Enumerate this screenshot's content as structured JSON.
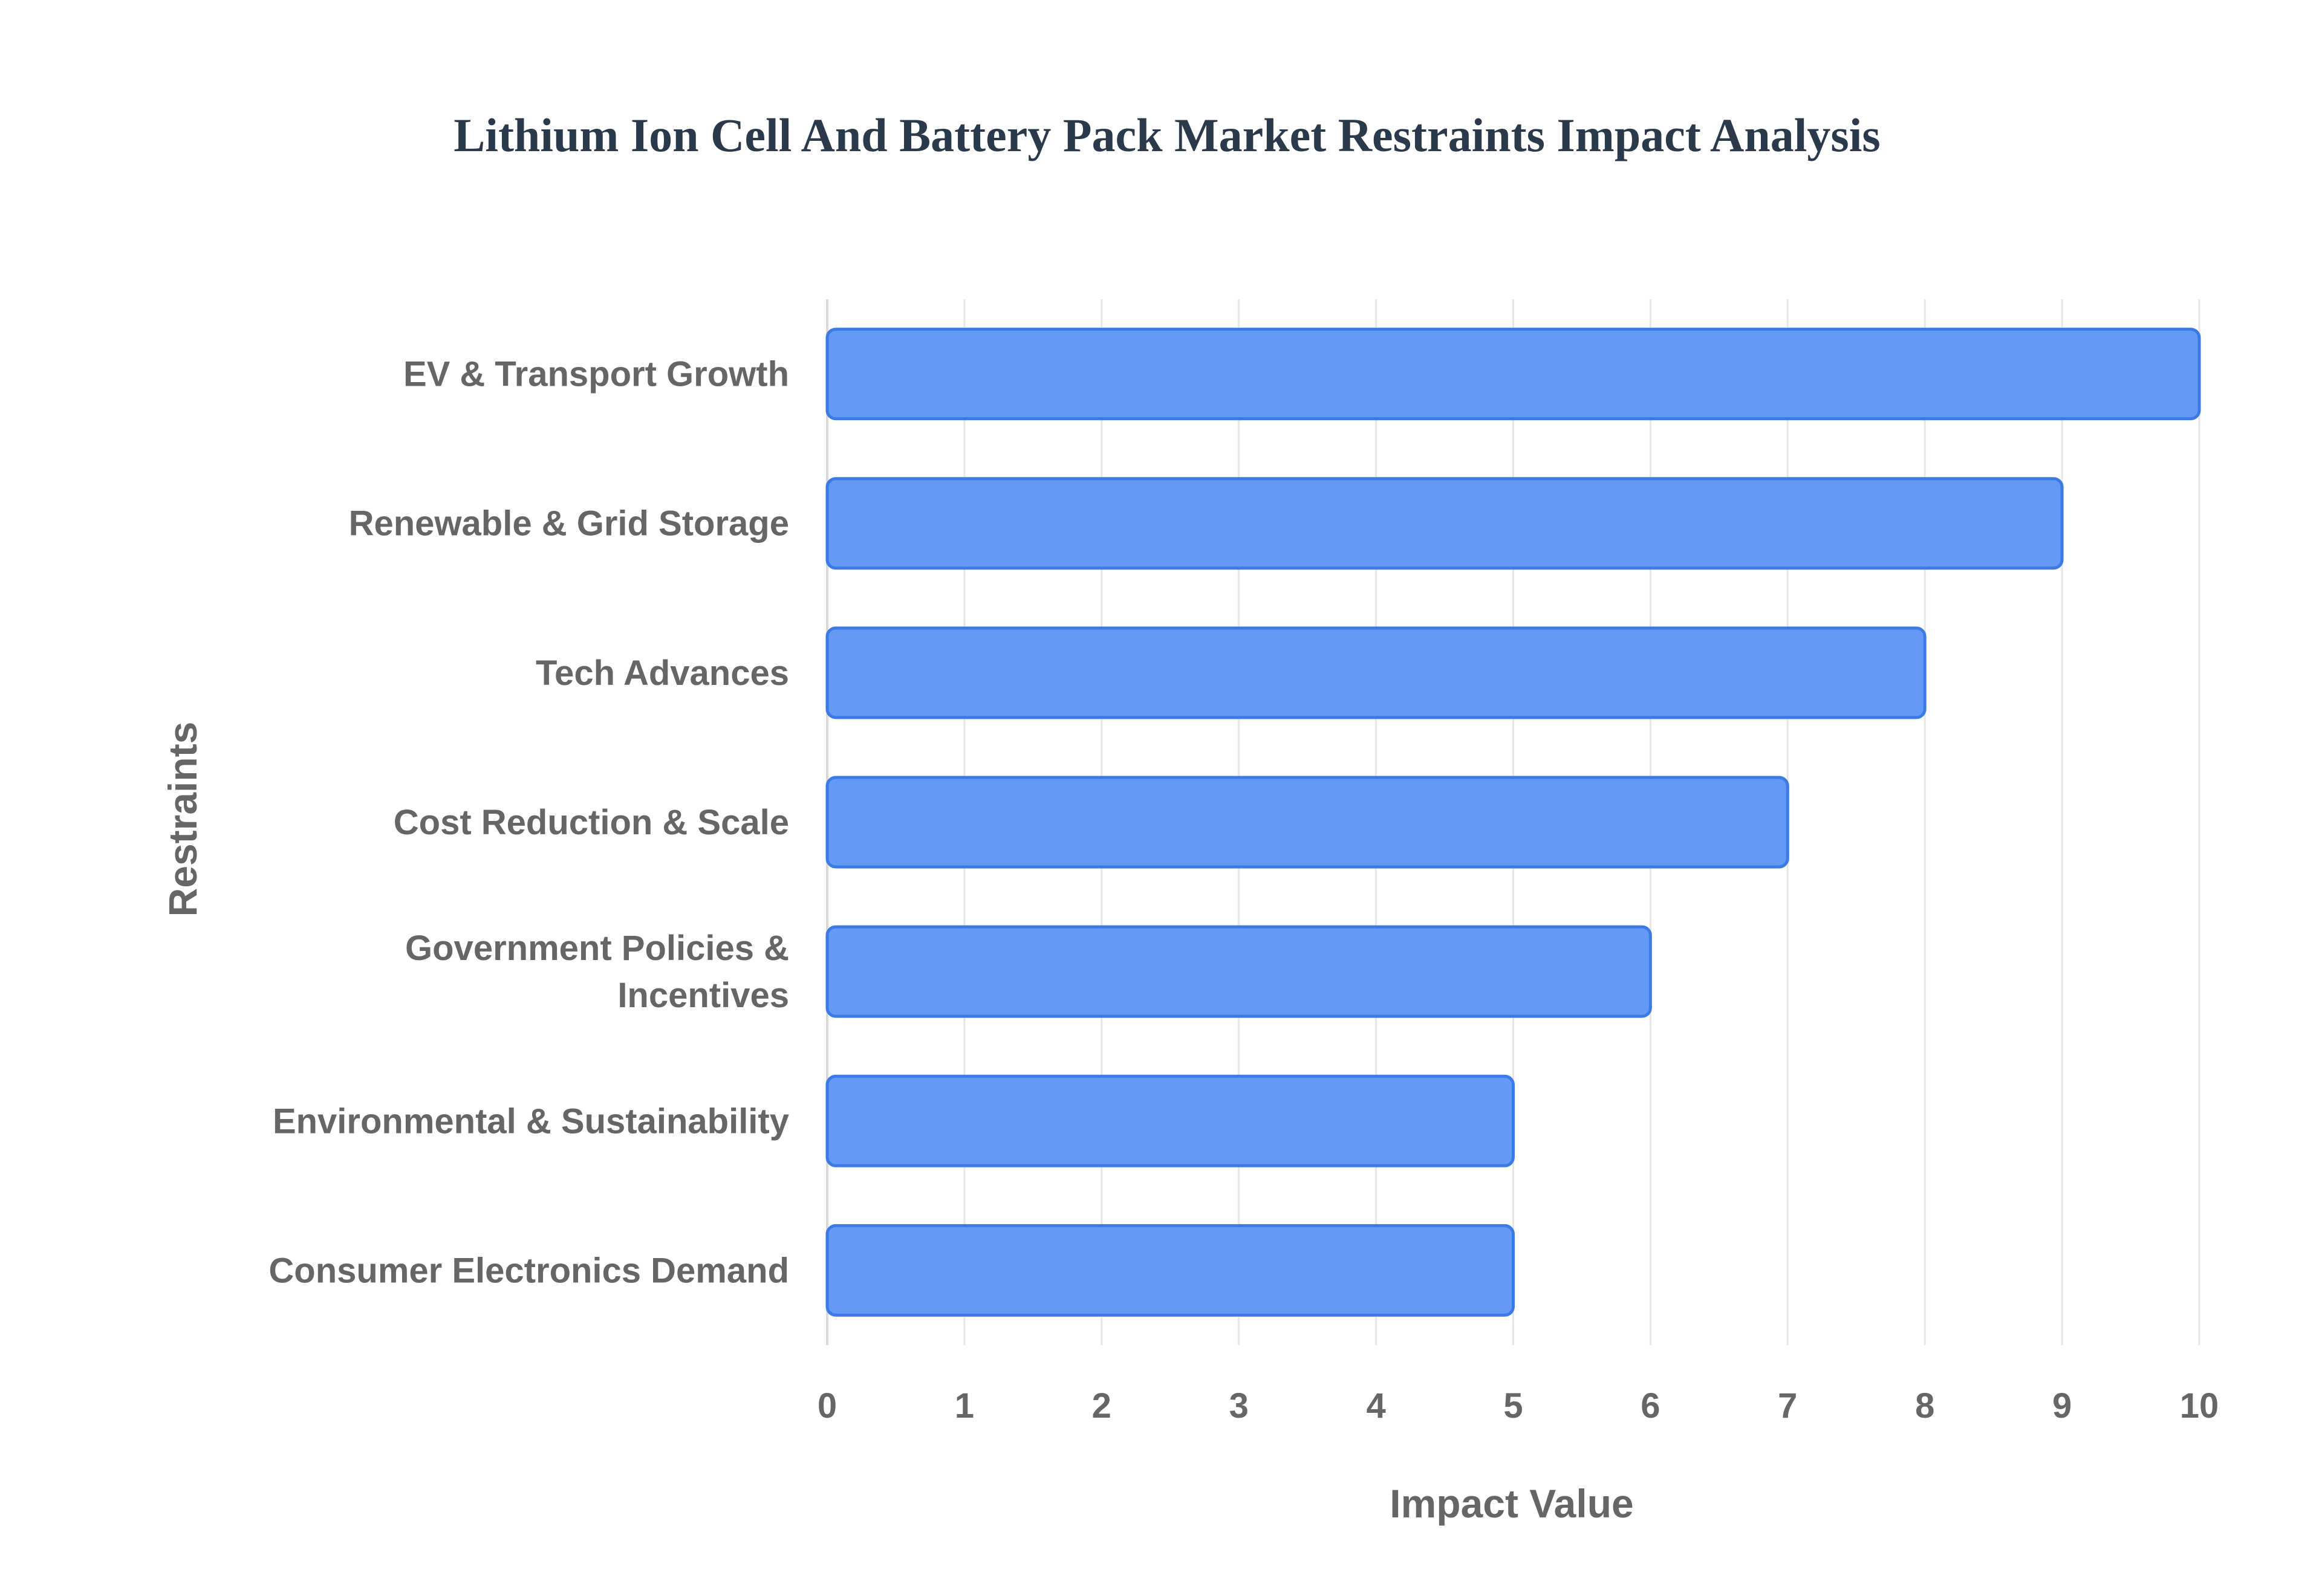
{
  "chart_data": {
    "type": "bar",
    "orientation": "horizontal",
    "title": "Lithium Ion Cell And Battery Pack Market Restraints Impact Analysis",
    "xlabel": "Impact Value",
    "ylabel": "Restraints",
    "xlim": [
      0,
      10
    ],
    "x_ticks": [
      "0",
      "1",
      "2",
      "3",
      "4",
      "5",
      "6",
      "7",
      "8",
      "9",
      "10"
    ],
    "categories": [
      [
        "EV & Transport Growth"
      ],
      [
        "Renewable & Grid Storage"
      ],
      [
        "Tech Advances"
      ],
      [
        "Cost Reduction & Scale"
      ],
      [
        "Government Policies &",
        "Incentives"
      ],
      [
        "Environmental & Sustainability"
      ],
      [
        "Consumer Electronics Demand"
      ]
    ],
    "values": [
      10,
      9,
      8,
      7,
      6,
      5,
      5
    ],
    "grid": true,
    "legend": "none",
    "colors": {
      "bar_fill": "#6499f5",
      "bar_stroke": "#3c7ae6",
      "title": "#2b3a4a",
      "text": "#666666",
      "grid": "#e6e6e6"
    }
  }
}
